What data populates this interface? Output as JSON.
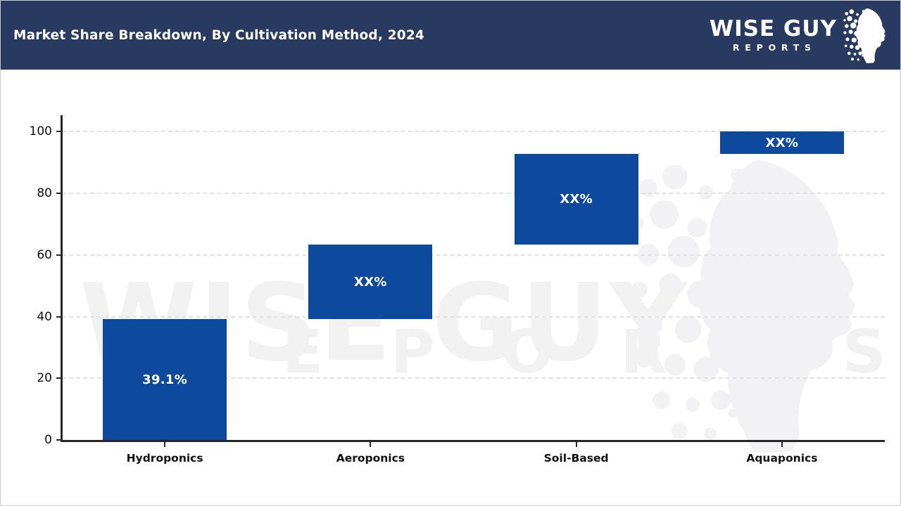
{
  "header": {
    "title": "Market Share Breakdown, By Cultivation Method, 2024",
    "logo": {
      "line1": "WISE GUY",
      "line2": "REPORTS"
    }
  },
  "watermark": {
    "line1": "WISE GUY",
    "line2": "R E P O R T S"
  },
  "colors": {
    "header_bg": "#283A60",
    "bar_fill": "#0D4A9E",
    "bar_label_text": "#ffffff",
    "grid_line": "#e2e2e2",
    "axis_line": "#262626",
    "watermark": "#f2f2f3",
    "canvas_border": "#c9c9c9"
  },
  "chart_data": {
    "type": "bar",
    "variant": "waterfall (floating stacked ranges)",
    "title": "Market Share Breakdown, By Cultivation Method, 2024",
    "xlabel": "",
    "ylabel": "",
    "categories": [
      "Hydroponics",
      "Aeroponics",
      "Soil-Based",
      "Aquaponics"
    ],
    "segments": [
      {
        "category": "Hydroponics",
        "start": 0,
        "end": 39.1,
        "value": 39.1,
        "label": "39.1%"
      },
      {
        "category": "Aeroponics",
        "start": 39.1,
        "end": 63.3,
        "value": 24.2,
        "label": "XX%"
      },
      {
        "category": "Soil-Based",
        "start": 63.3,
        "end": 92.8,
        "value": 29.5,
        "label": "XX%"
      },
      {
        "category": "Aquaponics",
        "start": 92.8,
        "end": 100,
        "value": 7.2,
        "label": "XX%"
      }
    ],
    "yticks": [
      0,
      20,
      40,
      60,
      80,
      100
    ],
    "ylim": [
      0,
      105.3
    ],
    "grid": "horizontal dashed",
    "legend": null
  }
}
